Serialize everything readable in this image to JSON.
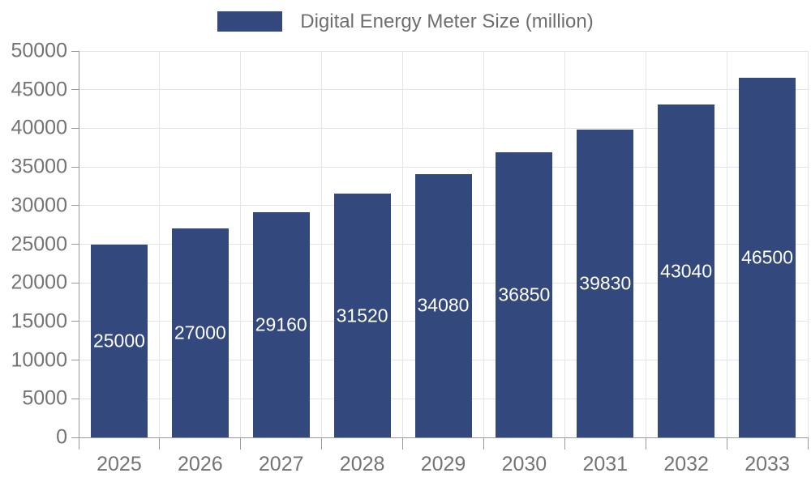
{
  "legend": {
    "label": "Digital Energy Meter Size (million)"
  },
  "chart_data": {
    "type": "bar",
    "title": "",
    "xlabel": "",
    "ylabel": "",
    "categories": [
      "2025",
      "2026",
      "2027",
      "2028",
      "2029",
      "2030",
      "2031",
      "2032",
      "2033"
    ],
    "series": [
      {
        "name": "Digital Energy Meter Size (million)",
        "values": [
          25000,
          27000,
          29160,
          31520,
          34080,
          36850,
          39830,
          43040,
          46500
        ]
      }
    ],
    "value_labels": [
      "25000",
      "27000",
      "29160",
      "31520",
      "34080",
      "36850",
      "39830",
      "43040",
      "46500"
    ],
    "ylim": [
      0,
      50000
    ],
    "yticks": [
      0,
      5000,
      10000,
      15000,
      20000,
      25000,
      30000,
      35000,
      40000,
      45000,
      50000
    ],
    "grid": true,
    "legend_position": "top-center",
    "colors": {
      "bar": "#33487c",
      "value_label": "#ffffff",
      "grid": "#e5e5e5",
      "axis": "#9a9a9a",
      "tick_label": "#747474",
      "legend_text": "#6e6e6e",
      "background": "#ffffff"
    }
  }
}
